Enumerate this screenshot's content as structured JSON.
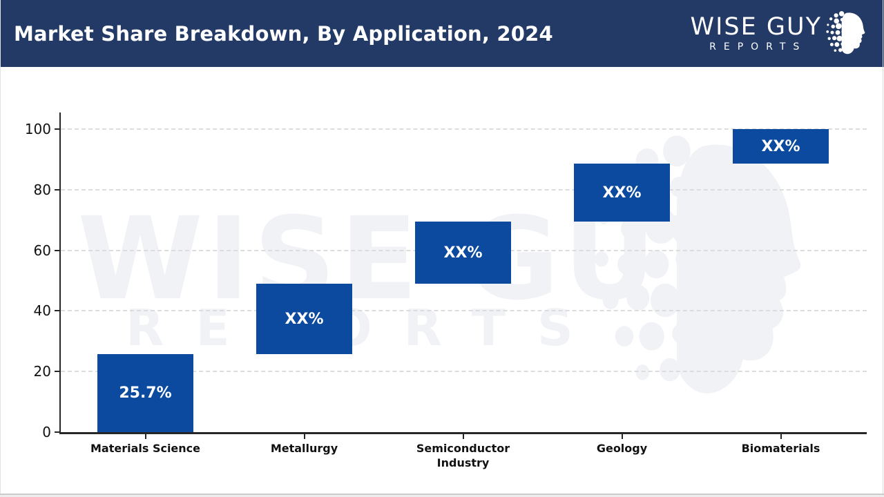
{
  "header": {
    "title": "Market Share Breakdown, By Application, 2024",
    "bg_color": "#233a66",
    "logo": {
      "line1": "WISE GUY",
      "line2": "REPORTS",
      "head_icon": "dotted-face-profile"
    }
  },
  "watermark": {
    "line1": "WISE GUY",
    "line2": "REPORTS",
    "head_icon": "dotted-face-profile"
  },
  "chart_data": {
    "type": "bar",
    "variant": "waterfall",
    "title": "Market Share Breakdown, By Application, 2024",
    "categories": [
      "Materials Science",
      "Metallurgy",
      "Semiconductor Industry",
      "Geology",
      "Biomaterials"
    ],
    "series": [
      {
        "name": "Market share (%)",
        "segments": [
          {
            "category": "Materials Science",
            "start": 0,
            "end": 25.7,
            "label": "25.7%"
          },
          {
            "category": "Metallurgy",
            "start": 25.7,
            "end": 48.9,
            "label": "XX%"
          },
          {
            "category": "Semiconductor Industry",
            "start": 48.9,
            "end": 69.4,
            "label": "XX%"
          },
          {
            "category": "Geology",
            "start": 69.4,
            "end": 88.6,
            "label": "XX%"
          },
          {
            "category": "Biomaterials",
            "start": 88.6,
            "end": 100,
            "label": "XX%"
          }
        ]
      }
    ],
    "xlabel": "",
    "ylabel": "",
    "ylim": [
      0,
      100
    ],
    "yticks": [
      0,
      20,
      40,
      60,
      80,
      100
    ],
    "grid": "horizontal dashed",
    "legend": "none",
    "bar_color": "#0b4a9f",
    "bar_label_color": "#ffffff",
    "axis_color": "#262626",
    "gridline_color": "#dcdcdc"
  }
}
